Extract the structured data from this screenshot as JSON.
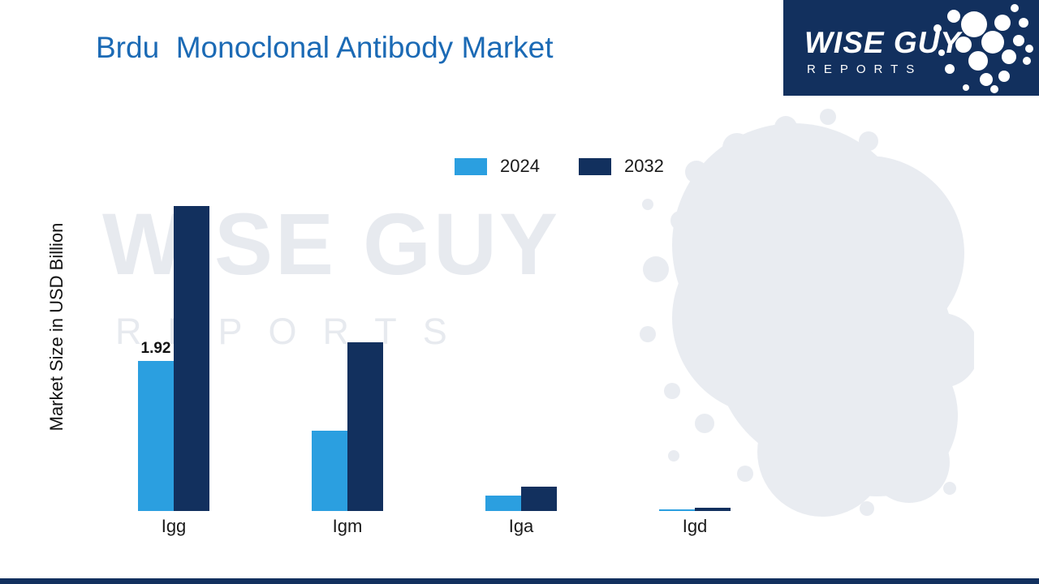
{
  "page": {
    "title": "Brdu  Monoclonal Antibody Market",
    "brand": {
      "name": "WISE GUY",
      "subtitle": "REPORTS"
    },
    "watermark": {
      "line1": "WISE GUY",
      "line2": "REPORTS"
    }
  },
  "colors": {
    "title_blue": "#1b6ab5",
    "header_navy": "#12305e",
    "series_2024": "#2b9fe0",
    "series_2032": "#12305e",
    "watermark_gray": "#e7eaef"
  },
  "chart_data": {
    "type": "bar",
    "categories": [
      "Igg",
      "Igm",
      "Iga",
      "Igd"
    ],
    "series": [
      {
        "name": "2024",
        "color": "#2b9fe0",
        "values": [
          1.92,
          1.03,
          0.2,
          0.02
        ]
      },
      {
        "name": "2032",
        "color": "#12305e",
        "values": [
          3.9,
          2.16,
          0.31,
          0.04
        ]
      }
    ],
    "title": "Brdu  Monoclonal Antibody Market",
    "xlabel": "",
    "ylabel": "Market Size in USD Billion",
    "ylim": [
      0,
      4.2
    ],
    "grid": false,
    "legend_position": "top",
    "data_labels": [
      {
        "series": "2024",
        "category": "Igg",
        "text": "1.92"
      }
    ]
  }
}
